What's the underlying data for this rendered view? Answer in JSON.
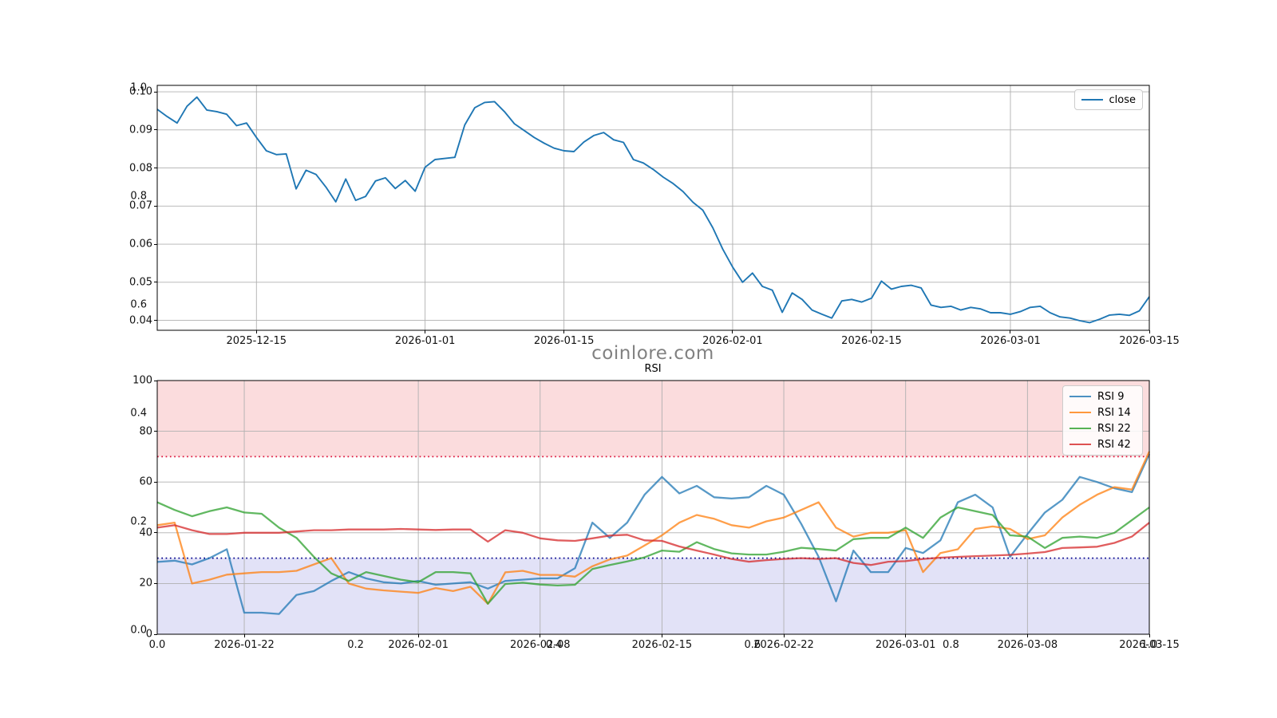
{
  "watermark": "coinlore.com",
  "rsi_title": "RSI",
  "colors": {
    "close": "#1f77b4",
    "rsi9": "#1f77b4",
    "rsi14": "#ff7f0e",
    "rsi22": "#2ca02c",
    "rsi42": "#d62728",
    "overbought_band": "#fbdcdd",
    "oversold_band": "#e2e2f7",
    "overbought_line": "#dc143c",
    "oversold_line": "#00008b",
    "grid": "#b0b0b0",
    "spine": "#000000",
    "watermark_color": "#818181"
  },
  "overlay_axis": {
    "y_labels": [
      "1.0",
      "0.8",
      "0.6",
      "0.4",
      "0.2",
      "0.0"
    ],
    "x_labels": [
      "0.0",
      "0.2",
      "0.4",
      "0.6",
      "0.8",
      "1.0"
    ]
  },
  "chart_data": [
    {
      "type": "line",
      "title": "",
      "legend_position": "upper right",
      "grid": true,
      "x_start_date": "2025-12-05",
      "x_tick_labels": [
        "2025-12-15",
        "2026-01-01",
        "2026-01-15",
        "2026-02-01",
        "2026-02-15",
        "2026-03-01",
        "2026-03-15"
      ],
      "x_tick_days": [
        10,
        27,
        41,
        58,
        72,
        86,
        100
      ],
      "y_tick_labels": [
        "0.10",
        "0.09",
        "0.08",
        "0.07",
        "0.06",
        "0.05",
        "0.04"
      ],
      "y_tick_values": [
        0.1,
        0.09,
        0.08,
        0.07,
        0.06,
        0.05,
        0.04
      ],
      "ylim": [
        0.03739,
        0.10168
      ],
      "series": [
        {
          "name": "close",
          "color_key": "close",
          "values": [
            0.0954,
            0.0935,
            0.0918,
            0.0962,
            0.0986,
            0.0952,
            0.0948,
            0.0941,
            0.0911,
            0.0918,
            0.088,
            0.0845,
            0.0835,
            0.0837,
            0.0745,
            0.0794,
            0.0783,
            0.075,
            0.0711,
            0.0771,
            0.0715,
            0.0725,
            0.0766,
            0.0774,
            0.0746,
            0.0767,
            0.0739,
            0.0802,
            0.0822,
            0.0825,
            0.0828,
            0.0913,
            0.0958,
            0.0972,
            0.0974,
            0.0948,
            0.0916,
            0.0898,
            0.088,
            0.0865,
            0.0852,
            0.0845,
            0.0843,
            0.0868,
            0.0885,
            0.0893,
            0.0874,
            0.0867,
            0.0822,
            0.0813,
            0.0796,
            0.0776,
            0.0759,
            0.0738,
            0.071,
            0.0689,
            0.0643,
            0.0587,
            0.054,
            0.05,
            0.0524,
            0.0489,
            0.0479,
            0.0421,
            0.0472,
            0.0455,
            0.0427,
            0.0416,
            0.0406,
            0.0451,
            0.0455,
            0.0448,
            0.0458,
            0.0503,
            0.0482,
            0.0489,
            0.0492,
            0.0485,
            0.044,
            0.0434,
            0.0437,
            0.0427,
            0.0434,
            0.043,
            0.042,
            0.042,
            0.0416,
            0.0423,
            0.0434,
            0.0437,
            0.042,
            0.0409,
            0.0406,
            0.0399,
            0.0394,
            0.0403,
            0.0414,
            0.0416,
            0.0413,
            0.0425,
            0.0462
          ]
        }
      ]
    },
    {
      "type": "line",
      "title": "RSI",
      "legend_position": "upper right",
      "grid": true,
      "x_start_date": "2026-01-17",
      "x_tick_labels": [
        "2026-01-22",
        "2026-02-01",
        "2026-02-08",
        "2026-02-15",
        "2026-02-22",
        "2026-03-01",
        "2026-03-08",
        "2026-03-15"
      ],
      "x_tick_days": [
        5,
        15,
        22,
        29,
        36,
        43,
        50,
        57
      ],
      "y_tick_labels": [
        "100",
        "80",
        "60",
        "40",
        "20",
        "0"
      ],
      "y_tick_values": [
        100,
        80,
        60,
        40,
        20,
        0
      ],
      "ylim": [
        0,
        100
      ],
      "overbought_level": 70,
      "oversold_level": 30,
      "series": [
        {
          "name": "RSI 9",
          "color_key": "rsi9",
          "values": [
            28.5,
            29,
            27.5,
            30,
            33.5,
            8.5,
            8.5,
            8,
            15.5,
            17,
            21,
            24.5,
            22,
            20.5,
            20,
            21,
            19.5,
            20,
            20.5,
            18,
            21,
            21.5,
            22,
            22,
            26,
            44,
            38,
            44,
            55,
            62,
            55.5,
            58.5,
            54,
            53.5,
            54,
            58.5,
            55,
            43.5,
            30.5,
            13,
            33,
            24.5,
            24.5,
            34,
            32,
            37,
            52,
            55,
            50,
            30.5,
            39.5,
            48,
            53,
            62,
            60,
            57.5,
            56,
            71
          ]
        },
        {
          "name": "RSI 14",
          "color_key": "rsi14",
          "values": [
            43,
            44,
            20,
            21.5,
            23.5,
            24,
            24.5,
            24.5,
            25,
            27.5,
            30,
            20,
            18,
            17.3,
            16.8,
            16.3,
            18.2,
            17,
            18.7,
            12,
            24.4,
            25,
            23.4,
            23.4,
            22.7,
            26.8,
            29.5,
            31,
            35,
            39,
            44,
            47,
            45.5,
            43,
            42,
            44.5,
            46,
            49,
            52,
            42,
            38.5,
            40,
            40,
            41,
            24.5,
            32,
            33.5,
            41.5,
            42.5,
            41.5,
            37.5,
            39,
            46,
            51,
            55,
            58,
            57,
            72
          ]
        },
        {
          "name": "RSI 22",
          "color_key": "rsi22",
          "values": [
            52,
            49,
            46.5,
            48.5,
            50,
            48,
            47.5,
            42,
            38,
            30.5,
            24,
            21,
            24.5,
            23,
            21.5,
            20.5,
            24.5,
            24.5,
            24,
            12,
            19.8,
            20.3,
            19.6,
            19.2,
            19.5,
            25.7,
            27.3,
            28.7,
            30.3,
            33,
            32.5,
            36.3,
            33.6,
            31.9,
            31.4,
            31.4,
            32.5,
            34.1,
            33.6,
            33,
            37.5,
            38,
            38,
            42,
            38,
            46,
            50,
            48.5,
            47,
            39,
            38.5,
            34,
            38,
            38.5,
            38,
            40,
            45,
            50
          ]
        },
        {
          "name": "RSI 42",
          "color_key": "rsi42",
          "values": [
            42,
            43,
            41,
            39.5,
            39.5,
            40,
            40,
            40,
            40.5,
            41,
            41,
            41.3,
            41.3,
            41.3,
            41.5,
            41.3,
            41.1,
            41.3,
            41.3,
            36.5,
            41,
            40,
            37.8,
            37,
            36.8,
            37.8,
            38.9,
            39.2,
            37,
            36.8,
            34.6,
            33,
            31.4,
            29.7,
            28.6,
            29.2,
            29.7,
            30,
            29.7,
            30,
            28.1,
            27.3,
            28.6,
            28.8,
            29.7,
            30.2,
            30.5,
            30.8,
            31,
            31.3,
            31.8,
            32.4,
            34,
            34.2,
            34.5,
            36,
            38.5,
            44
          ]
        }
      ]
    }
  ]
}
